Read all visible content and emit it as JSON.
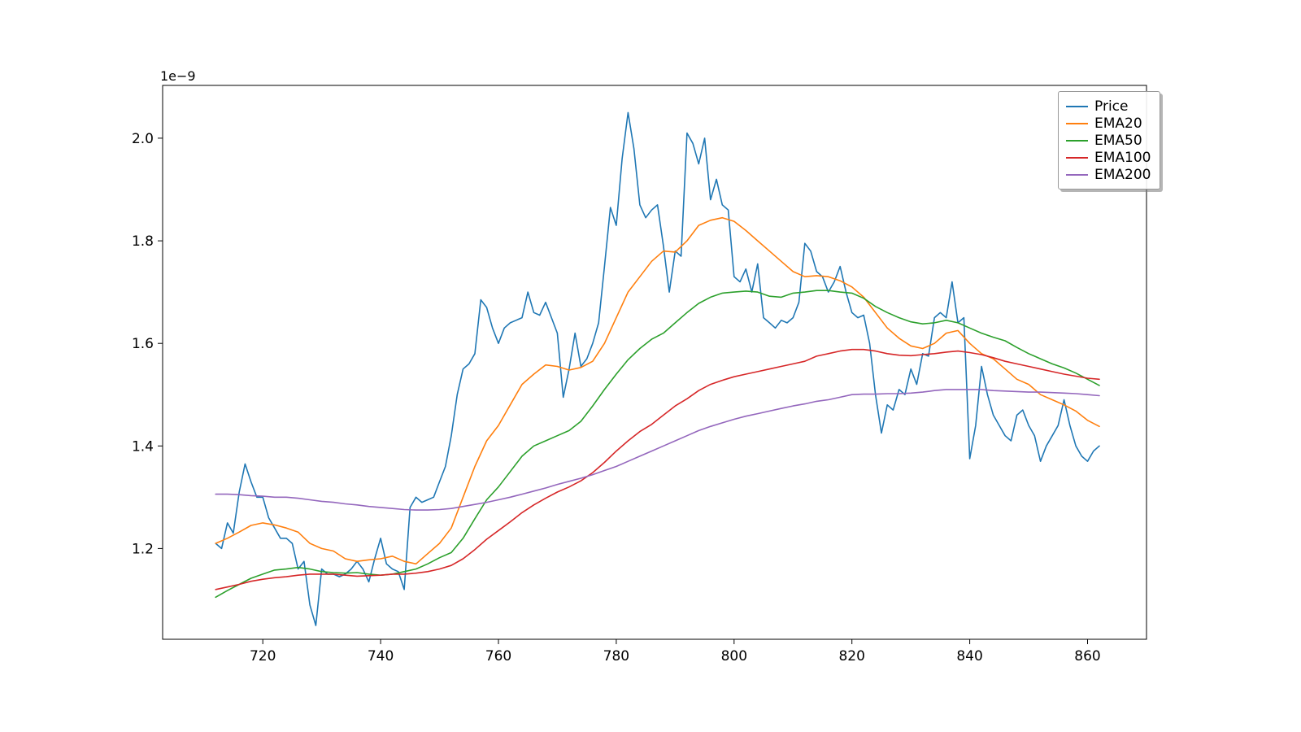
{
  "chart_data": {
    "type": "line",
    "title": "",
    "xlabel": "",
    "ylabel": "",
    "y_offset_label": "1e−9",
    "grid": false,
    "legend_position": "upper right",
    "xlim": [
      703,
      870
    ],
    "ylim": [
      1.023,
      2.103
    ],
    "xticks": [
      720,
      740,
      760,
      780,
      800,
      820,
      840,
      860
    ],
    "yticks": [
      1.2,
      1.4,
      1.6,
      1.8,
      2.0
    ],
    "ytick_labels": [
      "1.2",
      "1.4",
      "1.6",
      "1.8",
      "2.0"
    ],
    "series": [
      {
        "name": "Price",
        "color": "#1f77b4",
        "x_start": 712,
        "x_step": 1,
        "y": [
          1.21,
          1.2,
          1.25,
          1.23,
          1.31,
          1.365,
          1.33,
          1.3,
          1.3,
          1.26,
          1.24,
          1.22,
          1.22,
          1.21,
          1.16,
          1.175,
          1.09,
          1.05,
          1.16,
          1.15,
          1.15,
          1.145,
          1.15,
          1.16,
          1.175,
          1.16,
          1.135,
          1.18,
          1.22,
          1.17,
          1.16,
          1.155,
          1.12,
          1.28,
          1.3,
          1.29,
          1.295,
          1.3,
          1.33,
          1.36,
          1.42,
          1.5,
          1.55,
          1.56,
          1.58,
          1.685,
          1.67,
          1.63,
          1.6,
          1.63,
          1.64,
          1.645,
          1.65,
          1.7,
          1.66,
          1.655,
          1.68,
          1.65,
          1.62,
          1.495,
          1.55,
          1.62,
          1.555,
          1.57,
          1.6,
          1.64,
          1.75,
          1.865,
          1.83,
          1.96,
          2.05,
          1.98,
          1.87,
          1.845,
          1.86,
          1.87,
          1.79,
          1.7,
          1.78,
          1.77,
          2.01,
          1.99,
          1.95,
          2.0,
          1.88,
          1.92,
          1.87,
          1.86,
          1.73,
          1.72,
          1.745,
          1.7,
          1.755,
          1.65,
          1.64,
          1.63,
          1.645,
          1.64,
          1.65,
          1.68,
          1.795,
          1.78,
          1.74,
          1.73,
          1.7,
          1.72,
          1.75,
          1.7,
          1.66,
          1.65,
          1.655,
          1.6,
          1.5,
          1.425,
          1.48,
          1.47,
          1.51,
          1.5,
          1.55,
          1.52,
          1.58,
          1.575,
          1.65,
          1.66,
          1.65,
          1.72,
          1.64,
          1.65,
          1.375,
          1.44,
          1.555,
          1.5,
          1.46,
          1.44,
          1.42,
          1.41,
          1.46,
          1.47,
          1.44,
          1.42,
          1.37,
          1.4,
          1.42,
          1.44,
          1.49,
          1.44,
          1.4,
          1.38,
          1.37,
          1.39,
          1.4
        ]
      },
      {
        "name": "EMA20",
        "color": "#ff7f0e",
        "x_start": 712,
        "x_step": 2,
        "y": [
          1.21,
          1.22,
          1.232,
          1.245,
          1.25,
          1.246,
          1.24,
          1.232,
          1.21,
          1.2,
          1.195,
          1.18,
          1.175,
          1.178,
          1.18,
          1.185,
          1.175,
          1.17,
          1.19,
          1.21,
          1.24,
          1.3,
          1.36,
          1.41,
          1.44,
          1.48,
          1.52,
          1.54,
          1.558,
          1.555,
          1.548,
          1.553,
          1.565,
          1.6,
          1.65,
          1.7,
          1.73,
          1.76,
          1.78,
          1.778,
          1.8,
          1.83,
          1.84,
          1.845,
          1.838,
          1.82,
          1.8,
          1.78,
          1.76,
          1.74,
          1.73,
          1.732,
          1.73,
          1.722,
          1.71,
          1.69,
          1.66,
          1.63,
          1.61,
          1.595,
          1.59,
          1.6,
          1.62,
          1.625,
          1.6,
          1.58,
          1.57,
          1.55,
          1.53,
          1.52,
          1.5,
          1.49,
          1.48,
          1.468,
          1.45,
          1.438
        ]
      },
      {
        "name": "EMA50",
        "color": "#2ca02c",
        "x_start": 712,
        "x_step": 2,
        "y": [
          1.105,
          1.118,
          1.13,
          1.142,
          1.15,
          1.158,
          1.16,
          1.163,
          1.16,
          1.155,
          1.153,
          1.152,
          1.153,
          1.15,
          1.148,
          1.15,
          1.155,
          1.16,
          1.17,
          1.182,
          1.192,
          1.22,
          1.258,
          1.295,
          1.32,
          1.35,
          1.38,
          1.4,
          1.41,
          1.42,
          1.43,
          1.448,
          1.478,
          1.51,
          1.54,
          1.568,
          1.59,
          1.608,
          1.62,
          1.64,
          1.66,
          1.678,
          1.69,
          1.698,
          1.7,
          1.702,
          1.7,
          1.692,
          1.69,
          1.698,
          1.7,
          1.703,
          1.703,
          1.7,
          1.698,
          1.688,
          1.672,
          1.66,
          1.65,
          1.642,
          1.638,
          1.64,
          1.645,
          1.64,
          1.63,
          1.62,
          1.612,
          1.605,
          1.592,
          1.58,
          1.57,
          1.56,
          1.552,
          1.542,
          1.53,
          1.518
        ]
      },
      {
        "name": "EMA100",
        "color": "#d62728",
        "x_start": 712,
        "x_step": 2,
        "y": [
          1.12,
          1.125,
          1.13,
          1.136,
          1.14,
          1.143,
          1.145,
          1.148,
          1.15,
          1.15,
          1.15,
          1.148,
          1.146,
          1.147,
          1.148,
          1.15,
          1.15,
          1.152,
          1.155,
          1.16,
          1.167,
          1.18,
          1.198,
          1.218,
          1.235,
          1.252,
          1.27,
          1.285,
          1.298,
          1.31,
          1.32,
          1.332,
          1.348,
          1.368,
          1.39,
          1.41,
          1.428,
          1.442,
          1.46,
          1.478,
          1.492,
          1.508,
          1.52,
          1.528,
          1.535,
          1.54,
          1.545,
          1.55,
          1.555,
          1.56,
          1.565,
          1.575,
          1.58,
          1.585,
          1.588,
          1.588,
          1.585,
          1.58,
          1.577,
          1.576,
          1.578,
          1.58,
          1.583,
          1.585,
          1.582,
          1.578,
          1.572,
          1.565,
          1.56,
          1.555,
          1.55,
          1.545,
          1.54,
          1.536,
          1.532,
          1.53
        ]
      },
      {
        "name": "EMA200",
        "color": "#9467bd",
        "x_start": 712,
        "x_step": 2,
        "y": [
          1.306,
          1.306,
          1.305,
          1.303,
          1.302,
          1.3,
          1.3,
          1.298,
          1.295,
          1.292,
          1.29,
          1.287,
          1.285,
          1.282,
          1.28,
          1.278,
          1.276,
          1.275,
          1.275,
          1.276,
          1.278,
          1.282,
          1.286,
          1.29,
          1.295,
          1.3,
          1.306,
          1.312,
          1.318,
          1.325,
          1.331,
          1.337,
          1.344,
          1.352,
          1.36,
          1.37,
          1.38,
          1.39,
          1.4,
          1.41,
          1.42,
          1.43,
          1.438,
          1.445,
          1.452,
          1.458,
          1.463,
          1.468,
          1.473,
          1.478,
          1.482,
          1.487,
          1.49,
          1.495,
          1.5,
          1.501,
          1.501,
          1.502,
          1.502,
          1.503,
          1.505,
          1.508,
          1.51,
          1.51,
          1.51,
          1.51,
          1.508,
          1.507,
          1.506,
          1.505,
          1.505,
          1.504,
          1.503,
          1.502,
          1.5,
          1.498
        ]
      }
    ]
  }
}
